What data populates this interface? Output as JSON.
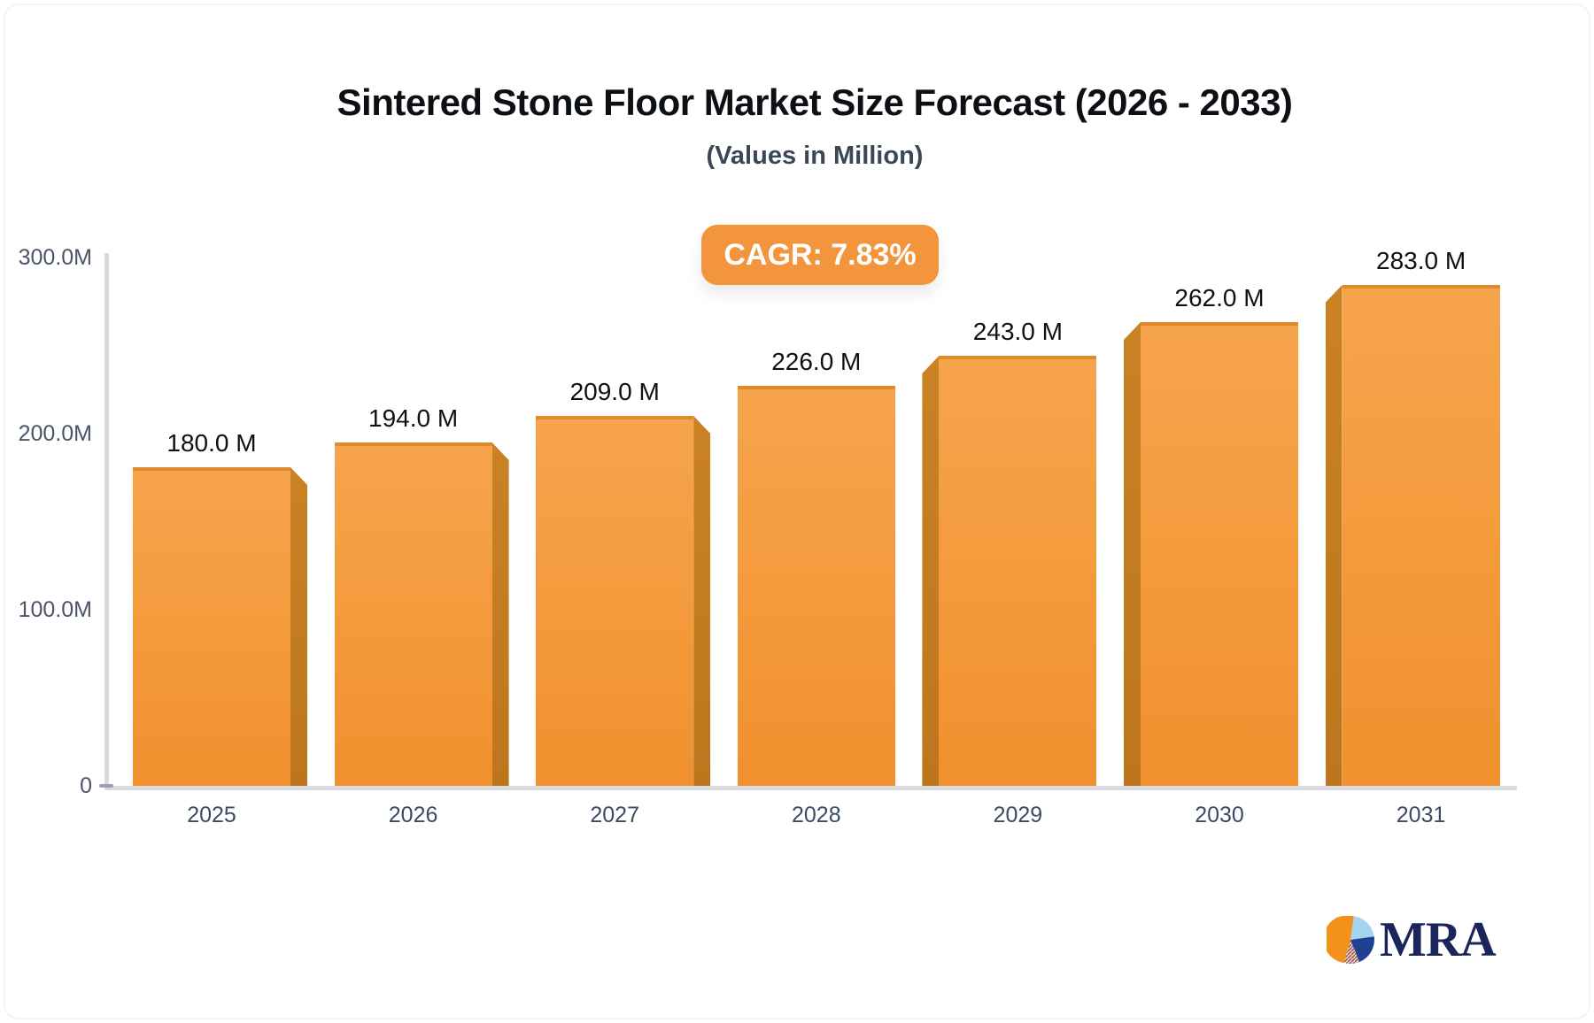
{
  "header": {
    "title": "Sintered Stone Floor Market Size Forecast (2026 - 2033)",
    "subtitle": "(Values in Million)",
    "cagr_label": "CAGR: 7.83%"
  },
  "chart_data": {
    "type": "bar",
    "title": "Sintered Stone Floor Market Size Forecast (2026 - 2033)",
    "subtitle": "(Values in Million)",
    "cagr": "7.83%",
    "unit": "Million",
    "categories": [
      "2025",
      "2026",
      "2027",
      "2028",
      "2029",
      "2030",
      "2031"
    ],
    "values": [
      180.0,
      194.0,
      209.0,
      226.0,
      243.0,
      262.0,
      283.0
    ],
    "value_labels": [
      "180.0 M",
      "194.0 M",
      "209.0 M",
      "226.0 M",
      "243.0 M",
      "262.0 M",
      "283.0 M"
    ],
    "series": [
      {
        "name": "Market Size",
        "values": [
          180.0,
          194.0,
          209.0,
          226.0,
          243.0,
          262.0,
          283.0
        ]
      }
    ],
    "xlabel": "",
    "ylabel": "",
    "ylim": [
      0,
      300
    ],
    "y_ticks": [
      {
        "value": 300,
        "label": "300.0M"
      },
      {
        "value": 200,
        "label": "200.0M"
      },
      {
        "value": 100,
        "label": "100.0M"
      },
      {
        "value": 0,
        "label": "0"
      }
    ],
    "grid": false,
    "legend": false,
    "bar_colors": {
      "face_top": "#f6a44d",
      "face_bottom": "#f0902e",
      "side": "#bd761d",
      "top_edge": "#d78223"
    }
  },
  "style": {
    "accent_orange": "#f2953c",
    "axis_line": "#d9d9de",
    "tick_text": "#4a5568",
    "year_text": "#3d4a63",
    "value_text": "#0e1013",
    "title_text": "#0c0f14",
    "subtitle_text": "#3b4656",
    "logo_navy": "#1b2559"
  },
  "logo": {
    "text": "MRA",
    "pie_icon_colors": [
      "#f2921d",
      "#a6d3ef",
      "#1f4093",
      "#a0524a"
    ]
  }
}
